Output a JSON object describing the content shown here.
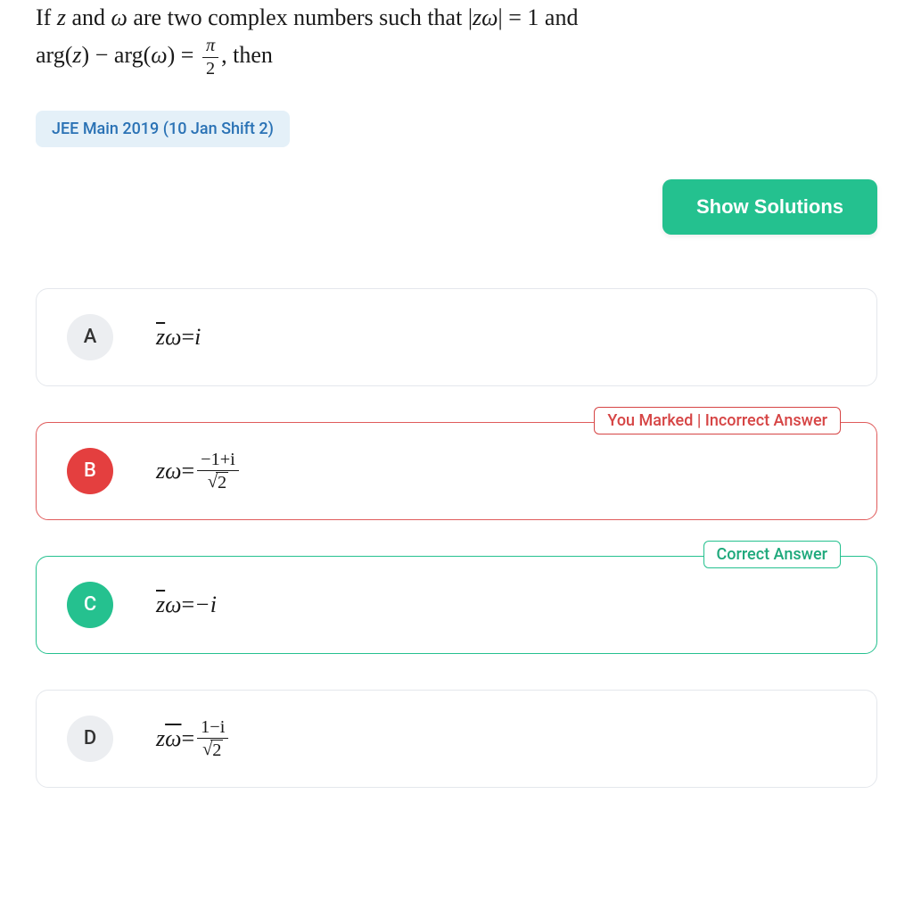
{
  "question": {
    "line1_pre": "If ",
    "z": "z",
    "line1_mid1": " and ",
    "omega": "ω",
    "line1_mid2": " are two complex numbers such that ",
    "abs_open": "|",
    "zw": "zω",
    "abs_close": "|",
    "eq1": " = 1",
    "line1_post": " and",
    "arg_z": "arg(",
    "arg_z_var": "z",
    "arg_z_close": ")",
    "minus": " − ",
    "arg_w": "arg(",
    "arg_w_var": "ω",
    "arg_w_close": ")",
    "eq2": " = ",
    "pi": "π",
    "two": "2",
    "then": ", then"
  },
  "tag": "JEE Main 2019 (10 Jan Shift 2)",
  "show_solutions": "Show Solutions",
  "badges": {
    "incorrect": "You Marked | Incorrect Answer",
    "correct": "Correct Answer"
  },
  "options": {
    "a": {
      "letter": "A",
      "lhs_bar": "z",
      "lhs_rest": "ω",
      "eq": " = ",
      "rhs": "i"
    },
    "b": {
      "letter": "B",
      "lhs": "zω",
      "eq": " = ",
      "num": "−1+i",
      "den_rad": "2"
    },
    "c": {
      "letter": "C",
      "lhs_bar": "z",
      "lhs_rest": "ω",
      "eq": " = ",
      "rhs": "−i"
    },
    "d": {
      "letter": "D",
      "lhs_z": "z",
      "lhs_bar": "ω",
      "eq": " = ",
      "num": "1−i",
      "den_rad": "2"
    }
  }
}
